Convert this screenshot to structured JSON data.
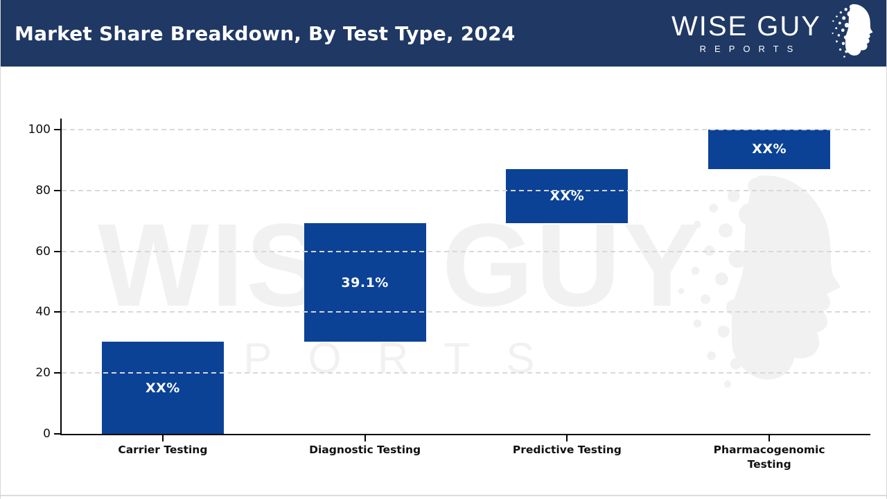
{
  "header": {
    "title": "Market Share Breakdown, By Test Type, 2024",
    "background_color": "#1f3864",
    "logo": {
      "wordmark": "WISE GUY",
      "subtext": "REPORTS"
    }
  },
  "watermark": {
    "wordmark": "WISE GUY",
    "subtext": "REPORTS"
  },
  "chart_data": {
    "type": "bar",
    "subtype": "floating-waterfall",
    "title": "Market Share Breakdown, By Test Type, 2024",
    "categories": [
      "Carrier Testing",
      "Diagnostic Testing",
      "Predictive Testing",
      "Pharmacogenomic Testing"
    ],
    "segments": [
      {
        "category": "Carrier Testing",
        "start": 0,
        "end": 30.2,
        "label": "XX%"
      },
      {
        "category": "Diagnostic Testing",
        "start": 30.2,
        "end": 69.3,
        "label": "39.1%"
      },
      {
        "category": "Predictive Testing",
        "start": 69.3,
        "end": 87.1,
        "label": "XX%"
      },
      {
        "category": "Pharmacogenomic Testing",
        "start": 87.1,
        "end": 100,
        "label": "XX%"
      }
    ],
    "xlabel": "",
    "ylabel": "",
    "ylim": [
      0,
      100
    ],
    "yticks": [
      0,
      20,
      40,
      60,
      80,
      100
    ],
    "grid": "horizontal-dashed",
    "legend": "none",
    "bar_color": "#0b4296",
    "bar_label_color": "#ffffff",
    "axis_color": "#000000",
    "gridline_color": "#d8d8d8"
  }
}
